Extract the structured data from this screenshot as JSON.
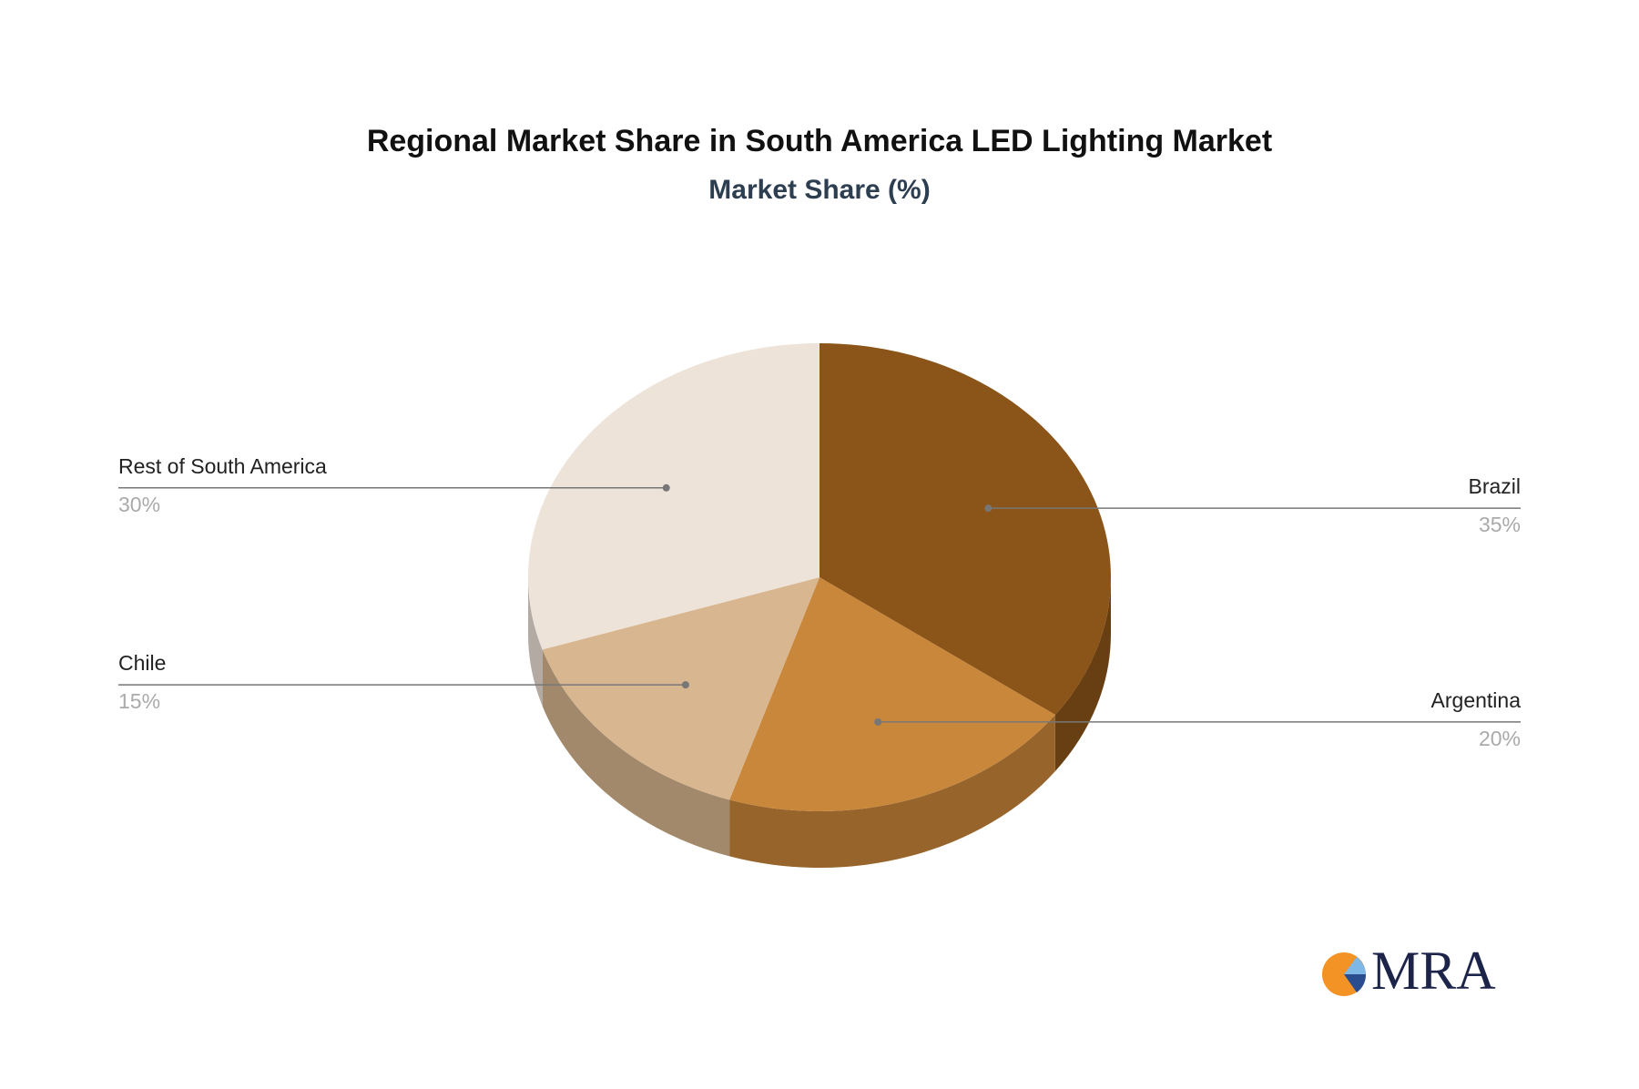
{
  "chart_data": {
    "type": "pie",
    "title": "Regional Market Share in South America LED Lighting Market",
    "subtitle": "Market Share (%)",
    "categories": [
      "Brazil",
      "Argentina",
      "Chile",
      "Rest of South America"
    ],
    "values": [
      35,
      20,
      15,
      30
    ],
    "value_labels": [
      "35%",
      "20%",
      "15%",
      "30%"
    ],
    "colors": [
      "#8b5419",
      "#c9873b",
      "#d8b68f",
      "#ede3d9"
    ]
  },
  "logo": "MRA"
}
